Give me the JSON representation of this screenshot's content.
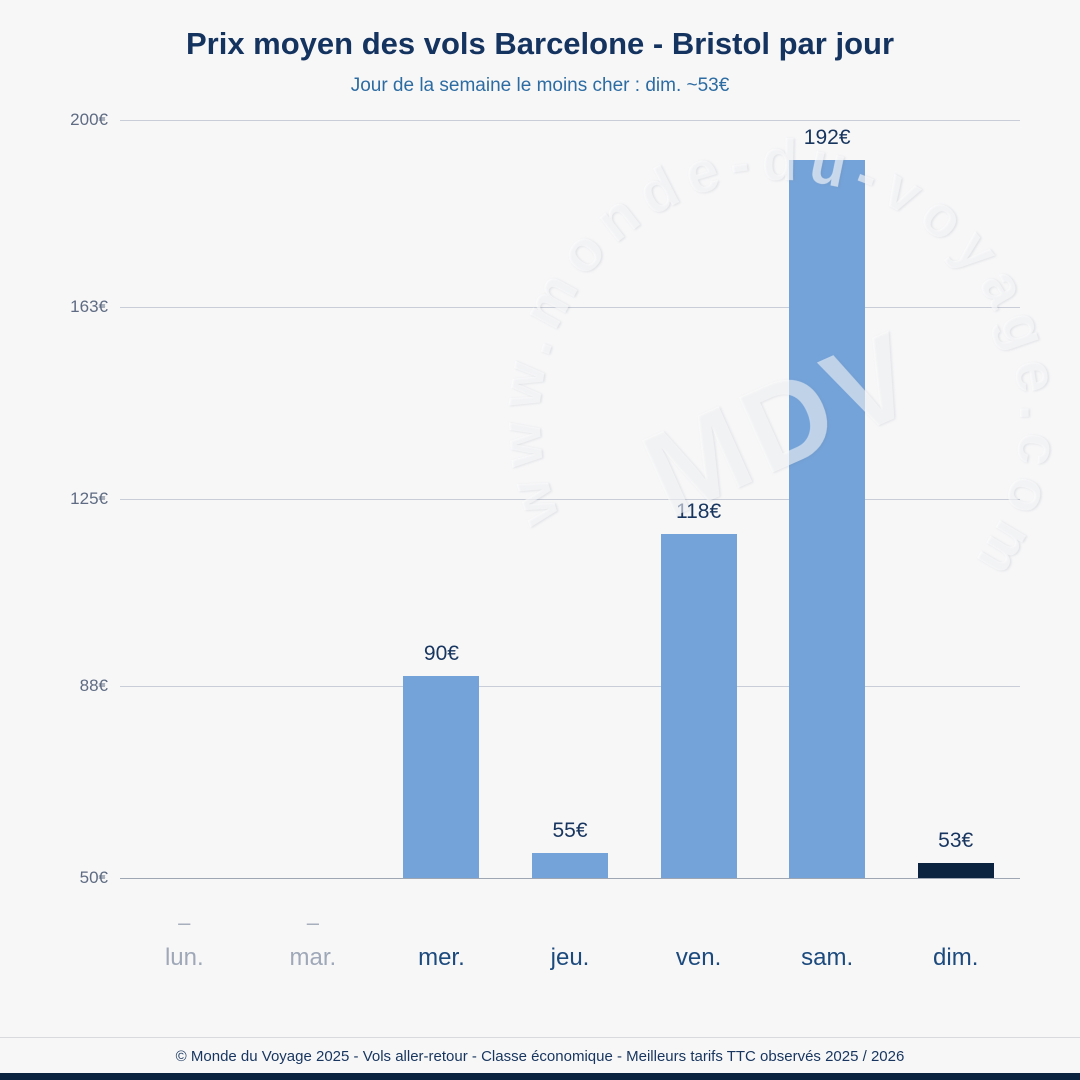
{
  "title": "Prix moyen des vols Barcelone - Bristol par jour",
  "subtitle": "Jour de la semaine le moins cher : dim. ~53€",
  "chart_data": {
    "type": "bar",
    "title": "Prix moyen des vols Barcelone - Bristol par jour",
    "subtitle": "Jour de la semaine le moins cher : dim. ~53€",
    "categories": [
      "lun.",
      "mar.",
      "mer.",
      "jeu.",
      "ven.",
      "sam.",
      "dim."
    ],
    "values": [
      null,
      null,
      90,
      55,
      118,
      192,
      53
    ],
    "bar_labels": [
      "–",
      "–",
      "90€",
      "55€",
      "118€",
      "192€",
      "53€"
    ],
    "missing_marker": "–",
    "ylim": [
      50,
      200
    ],
    "yticks": [
      200,
      163,
      125,
      88,
      50
    ],
    "ytick_labels": [
      "200€",
      "163€",
      "125€",
      "88€",
      "50€"
    ],
    "highlight_index": 6,
    "grid": true,
    "legend_position": "none",
    "colors": {
      "bar": "#74a3d9",
      "highlight": "#0c2340",
      "grid": "#c9cdd8",
      "baseline": "#9ea5b3",
      "title": "#14335f",
      "subtitle": "#2d6ca2",
      "value_label": "#17355e",
      "xtick_active": "#1c4a7d",
      "xtick_muted": "#9fa8b8"
    }
  },
  "watermark": {
    "ring_text": "www.monde-du-voyage.com",
    "center_text": "MDV"
  },
  "footer": {
    "text": "© Monde du Voyage 2025 - Vols aller-retour - Classe économique - Meilleurs tarifs TTC observés 2025 / 2026"
  }
}
